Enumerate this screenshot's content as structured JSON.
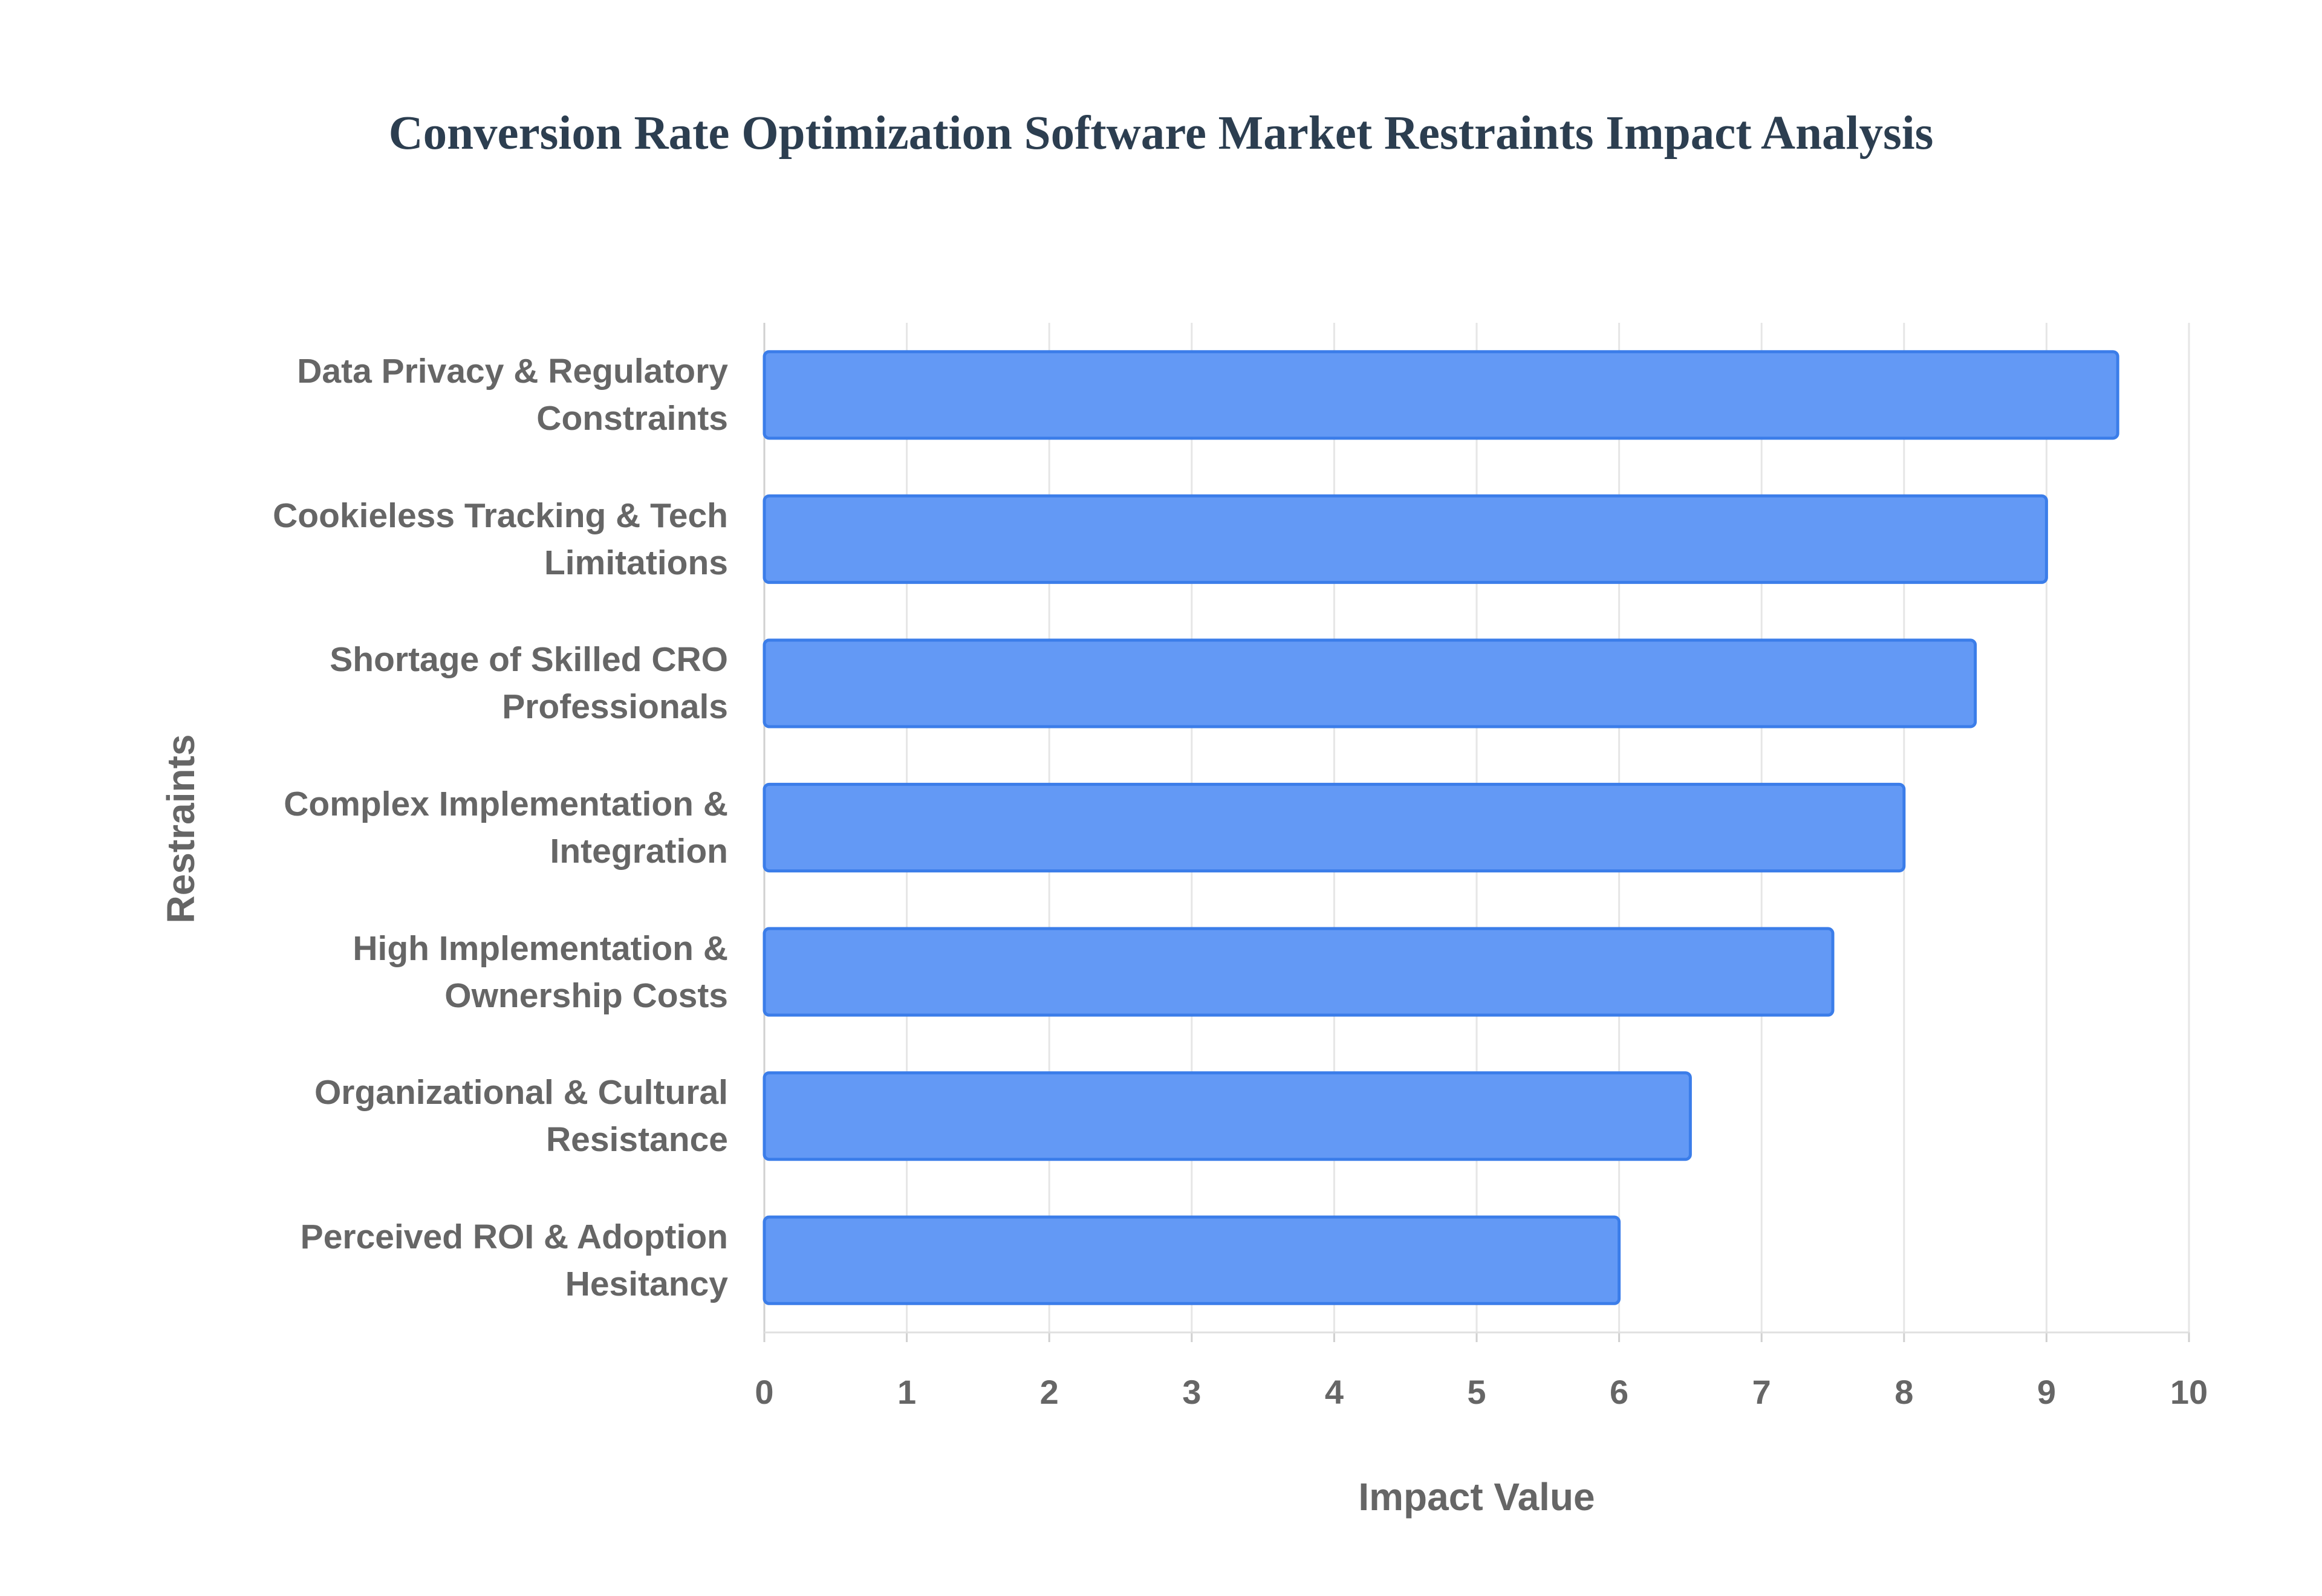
{
  "chart_data": {
    "type": "hbar",
    "title": "Conversion Rate Optimization Software Market Restraints Impact Analysis",
    "x_label": "Impact Value",
    "y_label": "Restraints",
    "categories": [
      "Data Privacy & Regulatory Constraints",
      "Cookieless Tracking & Tech Limitations",
      "Shortage of Skilled CRO Professionals",
      "Complex Implementation & Integration",
      "High Implementation & Ownership Costs",
      "Organizational & Cultural Resistance",
      "Perceived ROI & Adoption Hesitancy"
    ],
    "values": [
      9.5,
      9,
      8.5,
      8,
      7.5,
      6.5,
      6
    ],
    "color": "#6399f5",
    "edge_color": "#3b7de9",
    "xlim": [
      0,
      10
    ],
    "xticks": [
      0,
      1,
      2,
      3,
      4,
      5,
      6,
      7,
      8,
      9,
      10
    ],
    "grid": true
  }
}
